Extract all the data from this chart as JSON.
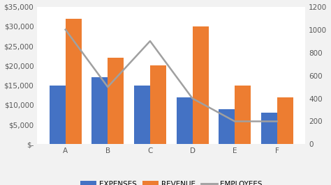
{
  "categories": [
    "A",
    "B",
    "C",
    "D",
    "E",
    "F"
  ],
  "expenses": [
    15000,
    17000,
    15000,
    12000,
    9000,
    8000
  ],
  "revenue": [
    32000,
    22000,
    20000,
    30000,
    15000,
    12000
  ],
  "employees": [
    1000,
    500,
    900,
    400,
    200,
    200
  ],
  "expenses_color": "#4472C4",
  "revenue_color": "#ED7D31",
  "employees_color": "#A0A0A0",
  "ylim_left": [
    0,
    35000
  ],
  "ylim_right": [
    0,
    1200
  ],
  "yticks_left": [
    0,
    5000,
    10000,
    15000,
    20000,
    25000,
    30000,
    35000
  ],
  "yticks_right": [
    0,
    200,
    400,
    600,
    800,
    1000,
    1200
  ],
  "legend_labels": [
    "EXPENSES",
    "REVENUE",
    "EMPLOYEES"
  ],
  "background_color": "#f2f2f2",
  "plot_bg_color": "#ffffff",
  "grid_color": "#ffffff",
  "bar_width": 0.38,
  "tick_label_color": "#595959",
  "tick_fontsize": 7.5
}
